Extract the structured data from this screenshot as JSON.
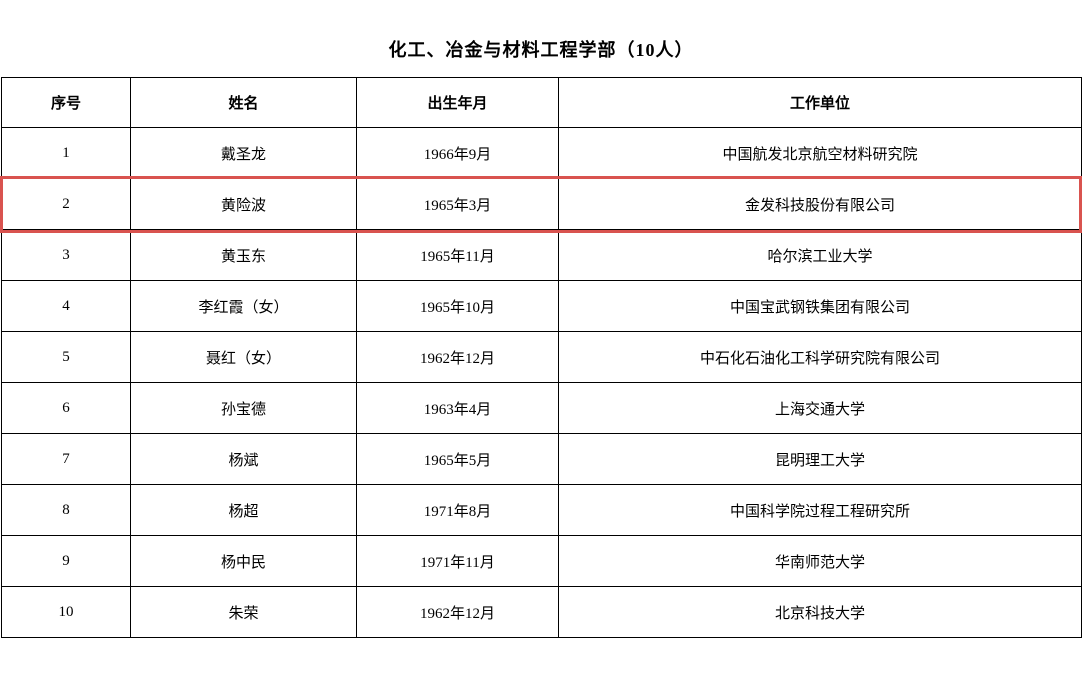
{
  "page": {
    "title": "化工、冶金与材料工程学部（10人）"
  },
  "table": {
    "headers": [
      "序号",
      "姓名",
      "出生年月",
      "工作单位"
    ],
    "rows": [
      [
        "1",
        "戴圣龙",
        "1966年9月",
        "中国航发北京航空材料研究院"
      ],
      [
        "2",
        "黄险波",
        "1965年3月",
        "金发科技股份有限公司"
      ],
      [
        "3",
        "黄玉东",
        "1965年11月",
        "哈尔滨工业大学"
      ],
      [
        "4",
        "李红霞（女）",
        "1965年10月",
        "中国宝武钢铁集团有限公司"
      ],
      [
        "5",
        "聂红（女）",
        "1962年12月",
        "中石化石油化工科学研究院有限公司"
      ],
      [
        "6",
        "孙宝德",
        "1963年4月",
        "上海交通大学"
      ],
      [
        "7",
        "杨斌",
        "1965年5月",
        "昆明理工大学"
      ],
      [
        "8",
        "杨超",
        "1971年8月",
        "中国科学院过程工程研究所"
      ],
      [
        "9",
        "杨中民",
        "1971年11月",
        "华南师范大学"
      ],
      [
        "10",
        "朱荣",
        "1962年12月",
        "北京科技大学"
      ]
    ],
    "highlighted_row": 2
  },
  "colors": {
    "highlight_border": "#d9534f",
    "table_border": "#000000",
    "text": "#000000",
    "background": "#ffffff"
  }
}
